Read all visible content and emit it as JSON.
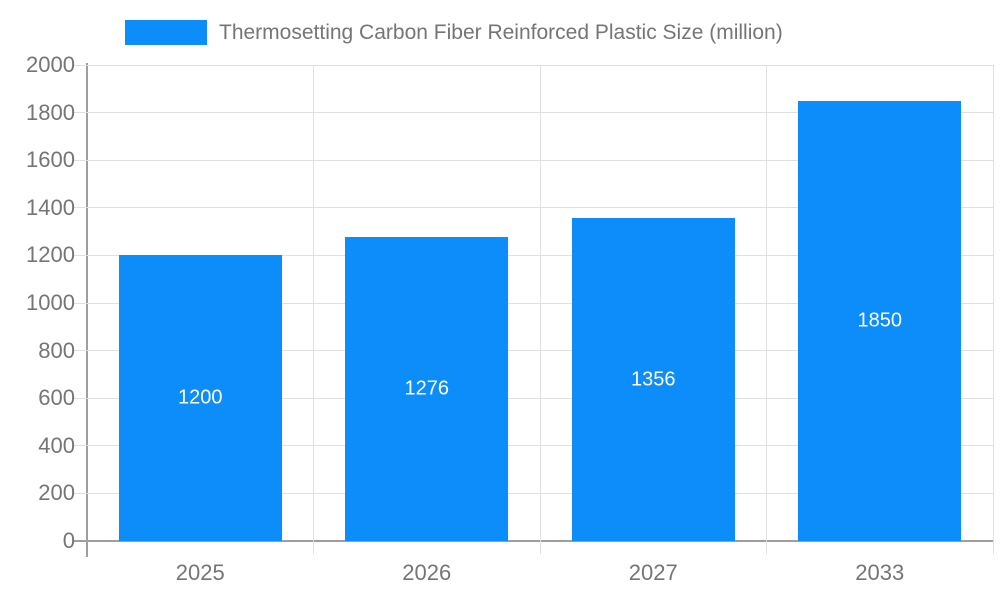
{
  "chart_data": {
    "type": "bar",
    "title": "Thermosetting Carbon Fiber Reinforced Plastic Size (million)",
    "categories": [
      "2025",
      "2026",
      "2027",
      "2033"
    ],
    "values": [
      1200,
      1276,
      1356,
      1850
    ],
    "series": [
      {
        "name": "Thermosetting Carbon Fiber Reinforced Plastic Size (million)",
        "values": [
          1200,
          1276,
          1356,
          1850
        ]
      }
    ],
    "value_labels": [
      "1200",
      "1276",
      "1356",
      "1850"
    ],
    "xlabel": "",
    "ylabel": "",
    "ylim": [
      0,
      2000
    ],
    "ytick_step": 200,
    "yticks": [
      0,
      200,
      400,
      600,
      800,
      1000,
      1200,
      1400,
      1600,
      1800,
      2000
    ],
    "grid": true,
    "legend_position": "top",
    "colors": {
      "bar": "#0d8df9",
      "value_label": "#ffffff",
      "axis": "#9e9e9e",
      "grid": "#e0e0e0",
      "text": "#757575",
      "background": "#ffffff"
    }
  }
}
